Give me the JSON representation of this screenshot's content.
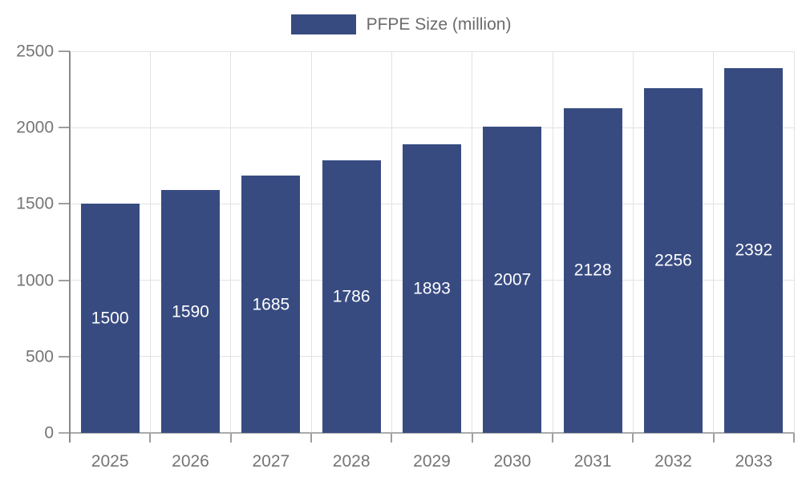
{
  "chart_data": {
    "type": "bar",
    "title": "",
    "legend_label": "PFPE Size (million)",
    "legend_position": "top-center",
    "categories": [
      "2025",
      "2026",
      "2027",
      "2028",
      "2029",
      "2030",
      "2031",
      "2032",
      "2033"
    ],
    "values": [
      1500,
      1590,
      1685,
      1786,
      1893,
      2007,
      2128,
      2256,
      2392
    ],
    "series": [
      {
        "name": "PFPE Size (million)",
        "values": [
          1500,
          1590,
          1685,
          1786,
          1893,
          2007,
          2128,
          2256,
          2392
        ]
      }
    ],
    "xlabel": "",
    "ylabel": "",
    "ylim": [
      0,
      2500
    ],
    "yticks": [
      0,
      500,
      1000,
      1500,
      2000,
      2500
    ],
    "grid": true,
    "value_labels": "inside-center",
    "colors": {
      "bar": "#384B81",
      "value_label": "#ffffff",
      "gridline": "#e2e2e6",
      "axis_text": "#757575",
      "legend_text": "#6b6b6b",
      "background": "#ffffff"
    }
  }
}
